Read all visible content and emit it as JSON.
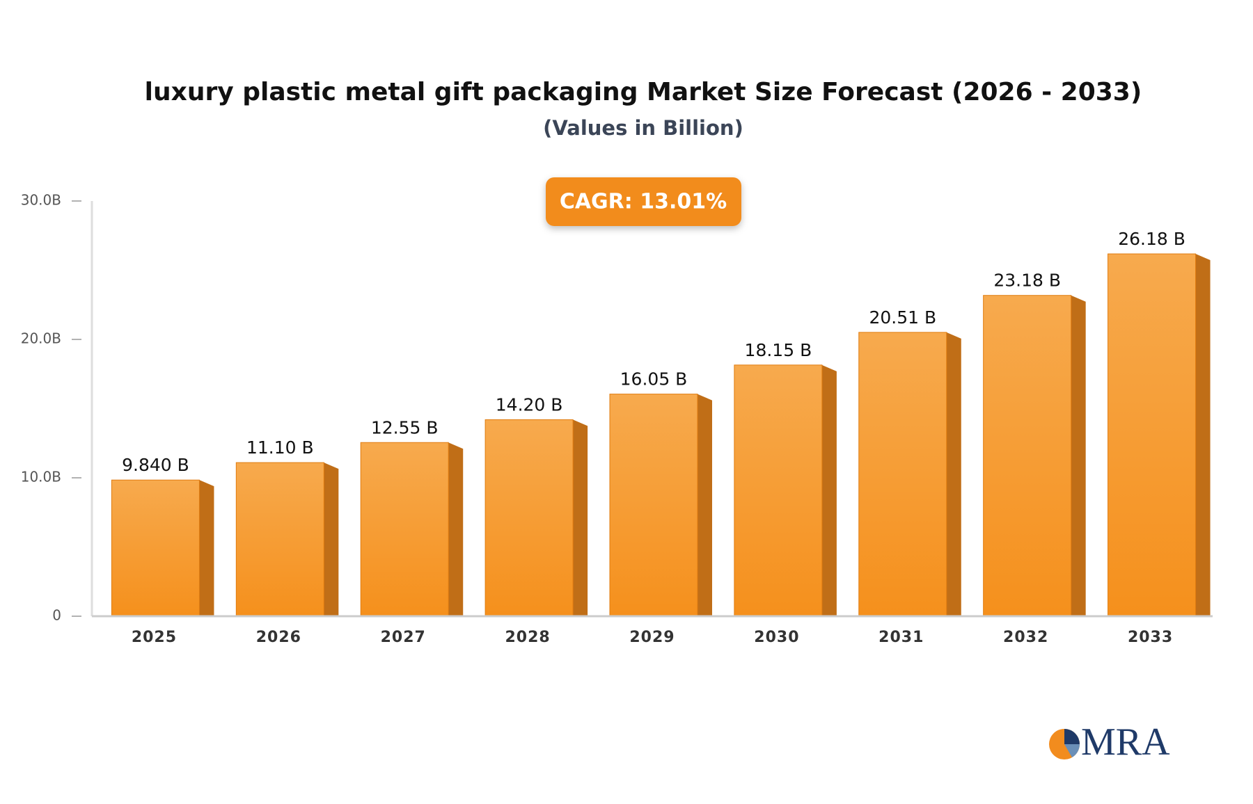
{
  "chart_data": {
    "type": "bar",
    "title": "luxury plastic metal gift packaging Market Size Forecast (2026 - 2033)",
    "subtitle": "(Values in Billion)",
    "annotation": "CAGR: 13.01%",
    "categories": [
      "2025",
      "2026",
      "2027",
      "2028",
      "2029",
      "2030",
      "2031",
      "2032",
      "2033"
    ],
    "values": [
      9.84,
      11.1,
      12.55,
      14.2,
      16.05,
      18.15,
      20.51,
      23.18,
      26.18
    ],
    "value_labels": [
      "9.840 B",
      "11.10 B",
      "12.55 B",
      "14.20 B",
      "16.05 B",
      "18.15 B",
      "20.51 B",
      "23.18 B",
      "26.18 B"
    ],
    "color": "#f5921e",
    "ylim": [
      0,
      30
    ],
    "yticks": [
      0,
      {
        "value": 10,
        "label": "10.0B"
      },
      {
        "value": 20,
        "label": "20.0B"
      },
      {
        "value": 30,
        "label": "30.0B"
      }
    ],
    "grid": false,
    "logo": "MRA"
  }
}
